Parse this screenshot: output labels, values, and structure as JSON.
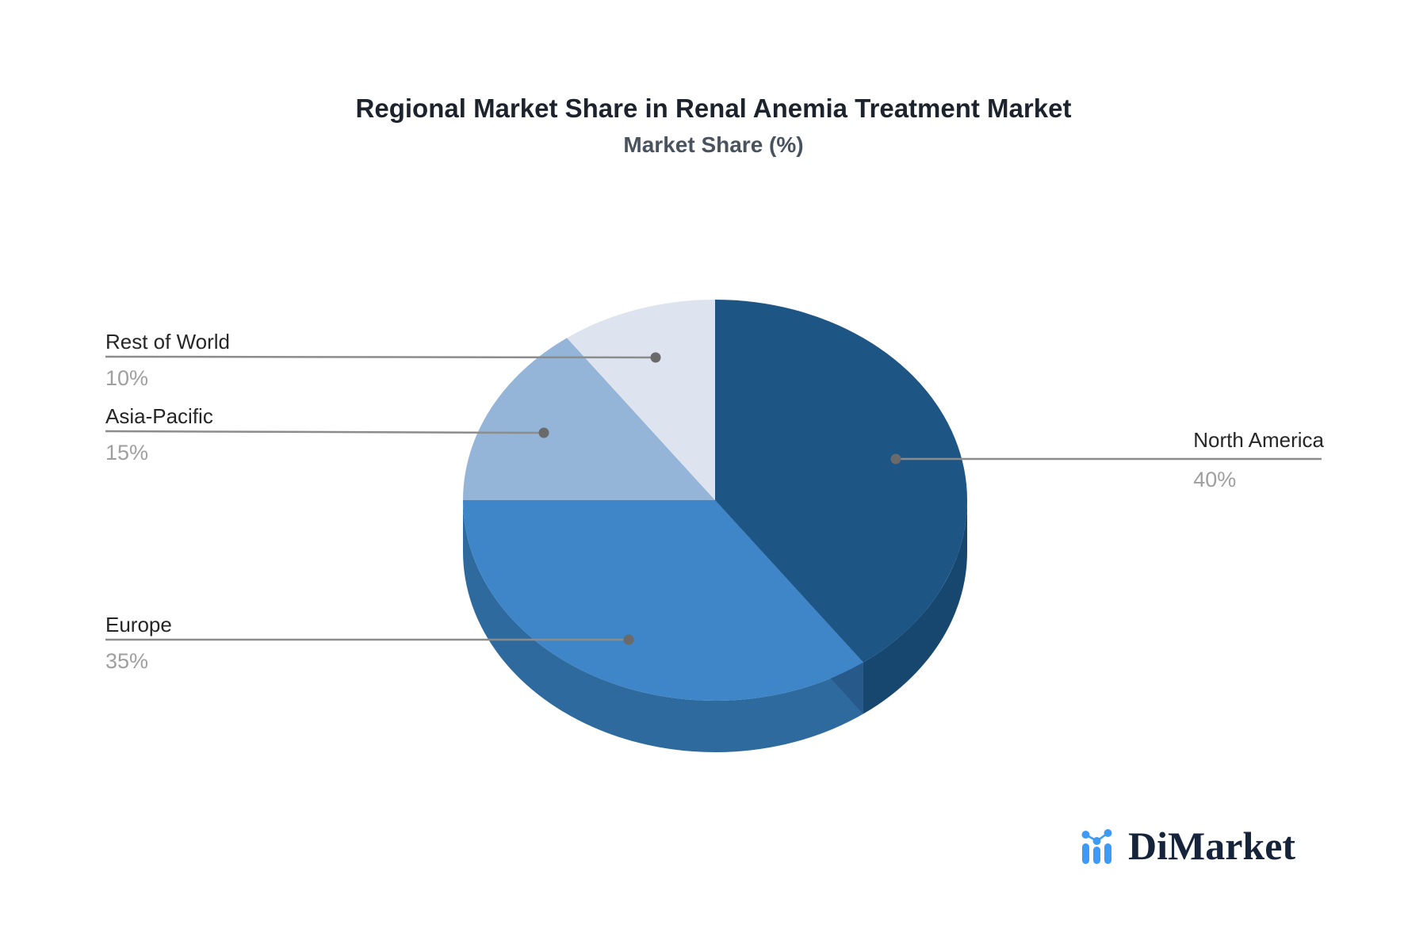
{
  "header": {
    "title": "Regional Market Share in Renal Anemia Treatment Market",
    "subtitle": "Market Share (%)"
  },
  "chart_data": {
    "type": "pie",
    "style": "3d-pie",
    "title": "Regional Market Share in Renal Anemia Treatment Market",
    "subtitle": "Market Share (%)",
    "unit": "%",
    "categories": [
      "North America",
      "Europe",
      "Asia-Pacific",
      "Rest of World"
    ],
    "values": [
      40,
      35,
      15,
      10
    ],
    "slices": [
      {
        "label": "North America",
        "value": 40,
        "display_value": "40%",
        "color": "#1d5585",
        "shade_color": "#17476f"
      },
      {
        "label": "Europe",
        "value": 35,
        "display_value": "35%",
        "color": "#3e86c7",
        "shade_color": "#2f6a9e"
      },
      {
        "label": "Asia-Pacific",
        "value": 15,
        "display_value": "15%",
        "color": "#94b5d8",
        "shade_color": "#7ea3c9"
      },
      {
        "label": "Rest of World",
        "value": 10,
        "display_value": "10%",
        "color": "#dde4ef",
        "shade_color": "#c3cfdf"
      }
    ],
    "boundary_face_color": "#27598a",
    "leader_line_color": "#8c8c8c",
    "leader_dot_color": "#6a6a6a",
    "label_color": "#262626",
    "value_color": "#9f9f9f",
    "legend_position": "callout-labels",
    "start_angle_deg": 0,
    "direction": "clockwise"
  },
  "logo": {
    "text": "DiMarket",
    "icon": "bar-chart-trend-icon",
    "accent_color": "#3d9bf5",
    "text_color": "#15233b"
  }
}
